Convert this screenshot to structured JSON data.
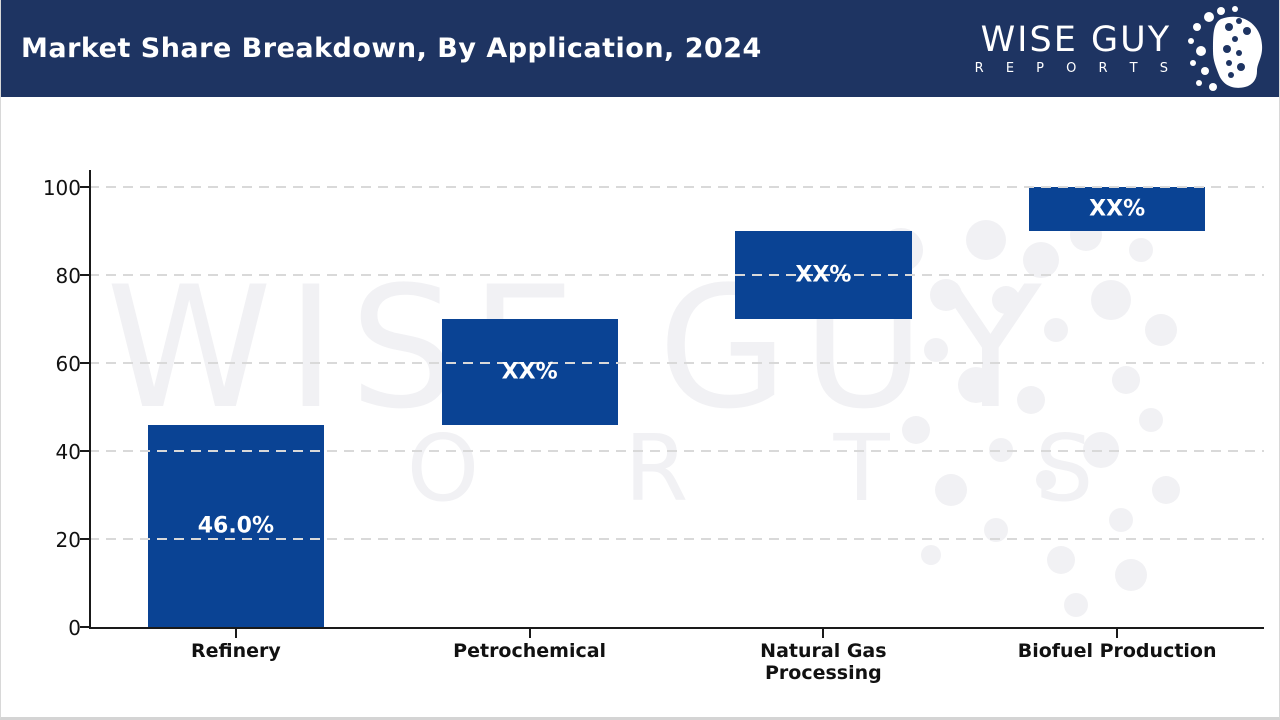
{
  "header": {
    "title": "Market Share Breakdown, By Application, 2024",
    "bg_color": "#1e3462",
    "logo": {
      "line1": "WISE GUY",
      "line2": "R E P O R T S"
    }
  },
  "watermark": {
    "line1": "WISE GUY",
    "line2": "P O R T S"
  },
  "chart_data": {
    "type": "bar",
    "subtype": "waterfall",
    "categories": [
      "Refinery",
      "Petrochemical",
      "Natural Gas\nProcessing",
      "Biofuel Production"
    ],
    "segments": [
      {
        "category": "Refinery",
        "base": 0,
        "top": 46,
        "label": "46.0%"
      },
      {
        "category": "Petrochemical",
        "base": 46,
        "top": 70,
        "label": "XX%"
      },
      {
        "category": "Natural Gas Processing",
        "base": 70,
        "top": 90,
        "label": "XX%"
      },
      {
        "category": "Biofuel Production",
        "base": 90,
        "top": 100,
        "label": "XX%"
      }
    ],
    "yticks": [
      0,
      20,
      40,
      60,
      80,
      100
    ],
    "ylim": [
      0,
      100
    ],
    "xlabel": "",
    "ylabel": "",
    "grid": "dashed horizontal",
    "bar_color": "#0a4394",
    "label_color": "#ffffff",
    "axis_color": "#1a1a1a",
    "gridline_color": "#d9d9d9"
  }
}
